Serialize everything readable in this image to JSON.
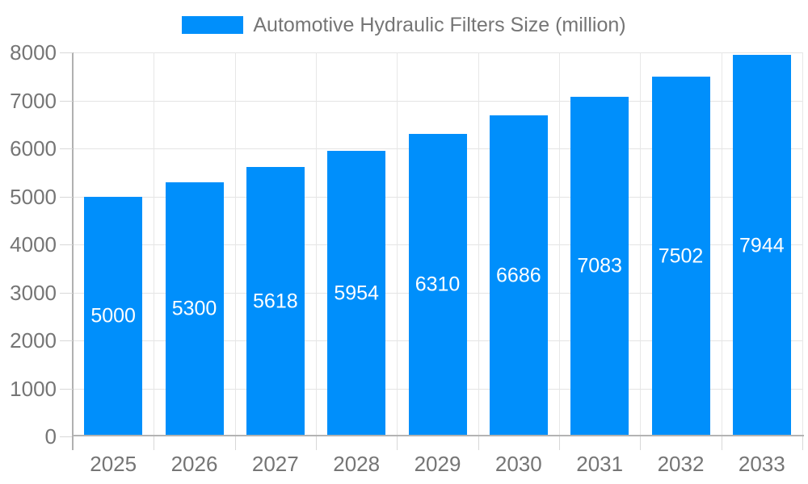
{
  "legend": {
    "label": "Automotive Hydraulic Filters Size (million)"
  },
  "chart_data": {
    "type": "bar",
    "title": "Automotive Hydraulic Filters Size (million)",
    "categories": [
      "2025",
      "2026",
      "2027",
      "2028",
      "2029",
      "2030",
      "2031",
      "2032",
      "2033"
    ],
    "series": [
      {
        "name": "Automotive Hydraulic Filters Size (million)",
        "values": [
          5000,
          5300,
          5618,
          5954,
          6310,
          6686,
          7083,
          7502,
          7944
        ]
      }
    ],
    "values": [
      5000,
      5300,
      5618,
      5954,
      6310,
      6686,
      7083,
      7502,
      7944
    ],
    "data_labels": [
      "5000",
      "5300",
      "5618",
      "5954",
      "6310",
      "6686",
      "7083",
      "7502",
      "7944"
    ],
    "xlabel": "",
    "ylabel": "",
    "ylim": [
      0,
      8000
    ],
    "ytick_interval": 1000,
    "ytick_labels": [
      "0",
      "1000",
      "2000",
      "3000",
      "4000",
      "5000",
      "6000",
      "7000",
      "8000"
    ],
    "grid": true,
    "legend_position": "top",
    "colors": {
      "bar": "#008FFB",
      "data_label_text": "#FFFFFF",
      "axis_text": "#757575",
      "gridline": "#E4E4E4",
      "axis_line": "#B3B3B3"
    }
  }
}
